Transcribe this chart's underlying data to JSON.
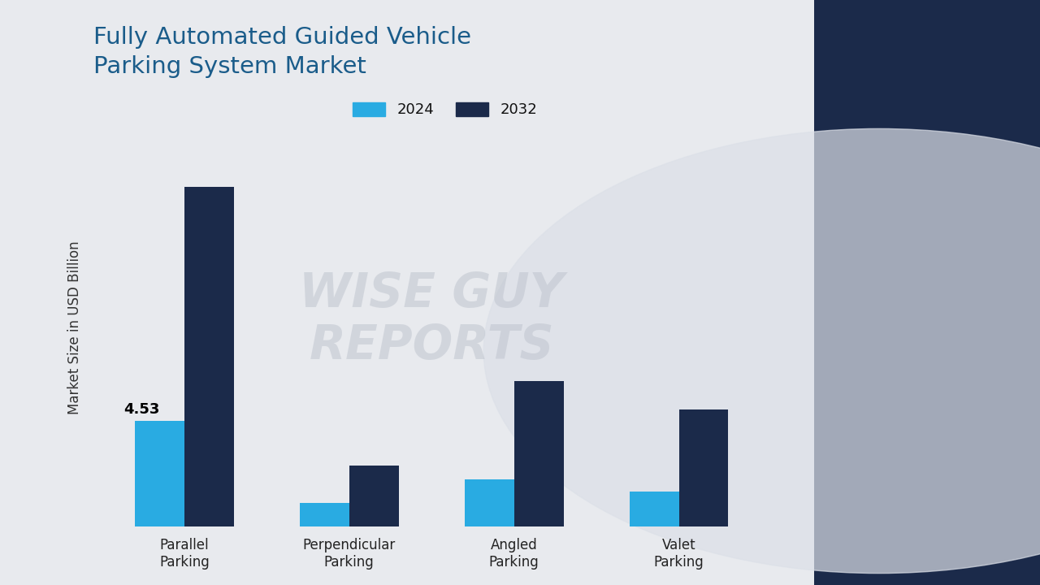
{
  "title": "Fully Automated Guided Vehicle\nParking System Market",
  "title_color": "#1a5c8a",
  "ylabel": "Market Size in USD Billion",
  "categories": [
    "Parallel\nParking",
    "Perpendicular\nParking",
    "Angled\nParking",
    "Valet\nParking"
  ],
  "values_2024": [
    4.53,
    1.0,
    2.0,
    1.5
  ],
  "values_2032": [
    14.5,
    2.6,
    6.2,
    5.0
  ],
  "color_2024": "#29abe2",
  "color_2032": "#1b2a4a",
  "annotation_label": "4.53",
  "background_color": "#e8eaee",
  "right_panel_color": "#1b2a4a",
  "legend_2024": "2024",
  "legend_2032": "2032",
  "bar_width": 0.3,
  "ylim": [
    0,
    17
  ],
  "watermark_text": "WISE GUY\nREPORTS"
}
